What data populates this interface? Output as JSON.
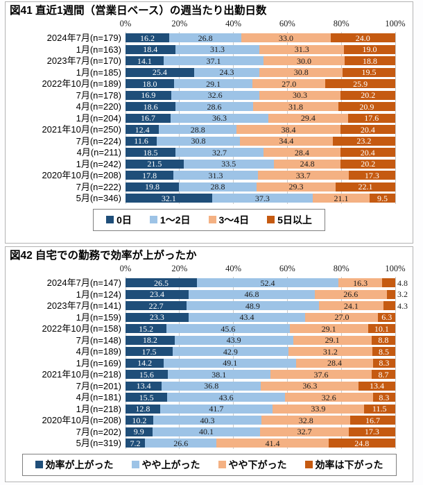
{
  "page": {
    "background": "#fdfdfe"
  },
  "palette": {
    "series_colors": [
      "#1f4e79",
      "#9dc3e6",
      "#f4b183",
      "#c55a11"
    ],
    "series_label_colors": [
      "#ffffff",
      "#1a1a1a",
      "#1a1a1a",
      "#ffffff"
    ],
    "gridline_color": "#c9c9c9",
    "panel_border_color": "#b3b3b3",
    "legend_border_color": "#7f7f7f"
  },
  "chart_data": [
    {
      "type": "bar",
      "orientation": "horizontal",
      "stacked": true,
      "percent_scale": true,
      "title": "図41 直近1週間（営業日ベース）の週当たり出勤日数",
      "xlabel": "",
      "ylabel": "",
      "xlim": [
        0,
        100
      ],
      "axis_ticks": [
        "0%",
        "20%",
        "40%",
        "60%",
        "80%",
        "100%"
      ],
      "grid": true,
      "legend_position": "bottom",
      "categories": [
        "2024年7月(n=179)",
        "1月(n=163)",
        "2023年7月(n=170)",
        "1月(n=185)",
        "2022年10月(n=189)",
        "7月(n=178)",
        "4月(n=220)",
        "1月(n=204)",
        "2021年10月(n=250)",
        "7月(n=224)",
        "4月(n=211)",
        "1月(n=242)",
        "2020年10月(n=208)",
        "7月(n=222)",
        "5月(n=346)"
      ],
      "series": [
        {
          "name": "0日",
          "values": [
            16.2,
            18.4,
            14.1,
            25.4,
            18.0,
            16.9,
            18.6,
            16.7,
            12.4,
            11.6,
            18.5,
            21.5,
            17.8,
            19.8,
            32.1
          ]
        },
        {
          "name": "1～2日",
          "values": [
            26.8,
            31.3,
            37.1,
            24.3,
            29.1,
            32.6,
            28.6,
            36.3,
            28.8,
            30.8,
            32.7,
            33.5,
            31.3,
            28.8,
            37.3
          ]
        },
        {
          "name": "3～4日",
          "values": [
            33.0,
            31.3,
            30.0,
            30.8,
            27.0,
            30.3,
            31.8,
            29.4,
            38.4,
            34.4,
            28.4,
            24.8,
            33.7,
            29.3,
            21.1
          ]
        },
        {
          "name": "5日以上",
          "values": [
            24.0,
            19.0,
            18.8,
            19.5,
            25.9,
            20.2,
            20.9,
            17.6,
            20.4,
            23.2,
            20.4,
            20.2,
            17.3,
            22.1,
            9.5
          ]
        }
      ]
    },
    {
      "type": "bar",
      "orientation": "horizontal",
      "stacked": true,
      "percent_scale": true,
      "title": "図42 自宅での勤務で効率が上がったか",
      "xlabel": "",
      "ylabel": "",
      "xlim": [
        0,
        100
      ],
      "axis_ticks": [
        "0%",
        "20%",
        "40%",
        "60%",
        "80%",
        "100%"
      ],
      "grid": true,
      "legend_position": "bottom",
      "categories": [
        "2024年7月(n=147)",
        "1月(n=124)",
        "2023年7月(n=141)",
        "1月(n=159)",
        "2022年10月(n=158)",
        "7月(n=148)",
        "4月(n=189)",
        "1月(n=169)",
        "2021年10月(n=218)",
        "7月(n=201)",
        "4月(n=181)",
        "1月(n=218)",
        "2020年10月(n=208)",
        "7月(n=202)",
        "5月(n=319)"
      ],
      "series": [
        {
          "name": "効率が上がった",
          "values": [
            26.5,
            23.4,
            22.7,
            23.3,
            15.2,
            18.2,
            17.5,
            14.2,
            15.6,
            13.4,
            15.5,
            12.8,
            10.2,
            9.9,
            7.2
          ]
        },
        {
          "name": "やや上がった",
          "values": [
            52.4,
            46.8,
            48.9,
            43.4,
            45.6,
            43.9,
            42.9,
            49.1,
            38.1,
            36.8,
            43.6,
            41.7,
            40.3,
            40.1,
            26.6
          ]
        },
        {
          "name": "やや下がった",
          "values": [
            16.3,
            26.6,
            24.1,
            27.0,
            29.1,
            29.1,
            31.2,
            28.4,
            37.6,
            36.3,
            32.6,
            33.9,
            32.8,
            32.7,
            41.4
          ]
        },
        {
          "name": "効率は下がった",
          "values": [
            4.8,
            3.2,
            4.3,
            6.3,
            10.1,
            8.8,
            8.5,
            8.3,
            8.7,
            13.4,
            8.3,
            11.5,
            16.7,
            17.3,
            24.8
          ]
        }
      ]
    }
  ]
}
